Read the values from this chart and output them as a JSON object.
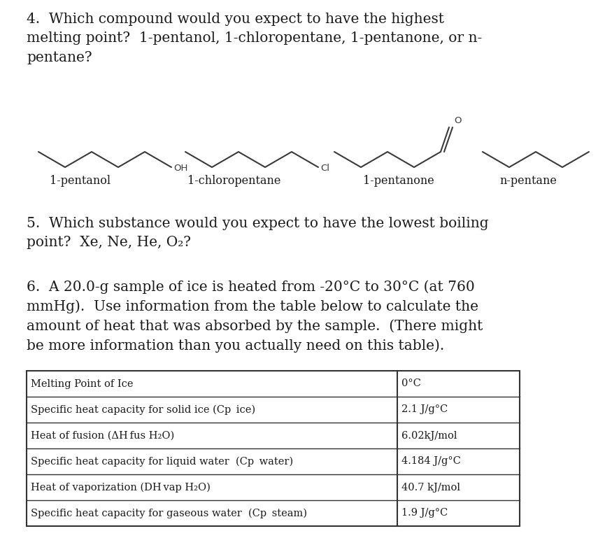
{
  "background_color": "#ffffff",
  "q4_text": "4.  Which compound would you expect to have the highest\nmelting point?  1-pentanol, 1-chloropentane, 1-pentanone, or n-\npentane?",
  "q5_text": "5.  Which substance would you expect to have the lowest boiling\npoint?  Xe, Ne, He, O₂?",
  "q6_text": "6.  A 20.0-g sample of ice is heated from -20°C to 30°C (at 760\nmmHg).  Use information from the table below to calculate the\namount of heat that was absorbed by the sample.  (There might\nbe more information than you actually need on this table).",
  "molecule_labels": [
    "1-pentanol",
    "1-chloropentane",
    "1-pentanone",
    "n-pentane"
  ],
  "table_rows": [
    [
      "Melting Point of Ice",
      "0°C"
    ],
    [
      "Specific heat capacity for solid ice (Cp  ice)",
      "2.1 J/g°C"
    ],
    [
      "Heat of fusion (ΔH fus H₂O)",
      "6.02kJ/mol"
    ],
    [
      "Specific heat capacity for liquid water  (Cp  water)",
      "4.184 J/g°C"
    ],
    [
      "Heat of vaporization (DH vap H₂O)",
      "40.7 kJ/mol"
    ],
    [
      "Specific heat capacity for gaseous water  (Cp  steam)",
      "1.9 J/g°C"
    ]
  ],
  "text_color": "#1a1a1a",
  "mol_color": "#3a3a3a",
  "font_size_question": 14.5,
  "font_size_label": 11.5,
  "font_size_table": 10.5,
  "font_size_mol_label": 9.5
}
